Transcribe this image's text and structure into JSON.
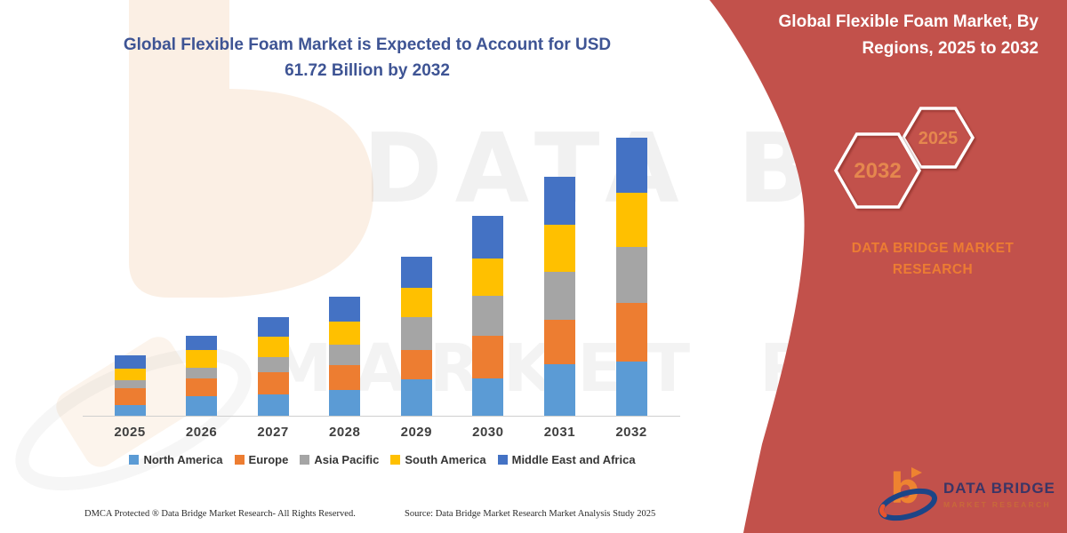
{
  "chart_data": {
    "type": "bar",
    "stacked": true,
    "title": "Global Flexible Foam Market is Expected to Account for USD 61.72 Billion by 2032",
    "unit": "USD Billion",
    "categories": [
      "2025",
      "2026",
      "2027",
      "2028",
      "2029",
      "2030",
      "2031",
      "2032"
    ],
    "series": [
      {
        "name": "North America",
        "color": "#5B9BD5",
        "values": [
          2.4,
          4.3,
          4.7,
          5.7,
          8.1,
          8.3,
          11.4,
          12.0
        ]
      },
      {
        "name": "Europe",
        "color": "#ED7D31",
        "values": [
          3.7,
          3.9,
          4.9,
          5.5,
          6.5,
          9.5,
          10.0,
          13.0
        ]
      },
      {
        "name": "Asia Pacific",
        "color": "#A5A5A5",
        "values": [
          1.8,
          2.4,
          3.5,
          4.5,
          7.3,
          8.9,
          10.6,
          12.4
        ]
      },
      {
        "name": "South America",
        "color": "#FFC000",
        "values": [
          2.6,
          3.9,
          4.5,
          5.3,
          6.5,
          8.3,
          10.4,
          12.0
        ]
      },
      {
        "name": "Middle East and Africa",
        "color": "#4472C4",
        "values": [
          2.9,
          3.2,
          4.3,
          5.5,
          6.9,
          9.3,
          10.6,
          12.32
        ]
      }
    ],
    "totals": [
      13.4,
      17.7,
      21.9,
      26.5,
      35.3,
      44.3,
      53.0,
      61.72
    ],
    "xlabel": "",
    "ylabel": "",
    "yaxis_visible": false,
    "gridlines": false,
    "legend_position": "bottom"
  },
  "right_panel": {
    "heading": "Global Flexible Foam Market, By Regions, 2025 to 2032",
    "hexagons": [
      {
        "label": "2032"
      },
      {
        "label": "2025"
      }
    ],
    "brand": "DATA BRIDGE MARKET RESEARCH",
    "bg_color": "#C2514B"
  },
  "watermark": {
    "line1": "DATA BRIDGE",
    "line2": "MARKET RESEARCH"
  },
  "logo": {
    "name": "DATA BRIDGE",
    "subtitle": "MARKET RESEARCH"
  },
  "footer": {
    "left": "DMCA Protected ® Data Bridge Market Research-  All Rights Reserved.",
    "right": "Source: Data Bridge Market Research Market Analysis Study 2025"
  }
}
